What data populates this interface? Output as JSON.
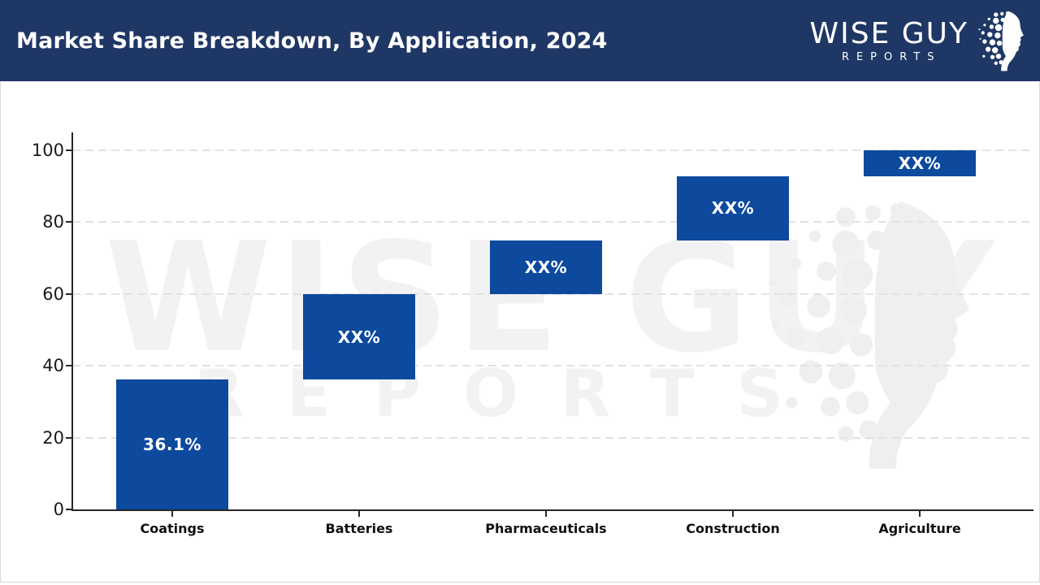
{
  "header": {
    "title": "Market Share Breakdown, By Application, 2024",
    "bg_color": "#1f3765",
    "logo": {
      "line1": "WISE GUY",
      "line2": "REPORTS"
    }
  },
  "watermark": {
    "line1": "WISE GUY",
    "line2": "REPORTS"
  },
  "chart_data": {
    "type": "bar",
    "variant": "waterfall",
    "title": "Market Share Breakdown, By Application, 2024",
    "categories": [
      "Coatings",
      "Batteries",
      "Pharmaceuticals",
      "Construction",
      "Agriculture"
    ],
    "segments": [
      {
        "category": "Coatings",
        "start": 0,
        "end": 36.1,
        "label": "36.1%"
      },
      {
        "category": "Batteries",
        "start": 36.1,
        "end": 60.0,
        "label": "XX%"
      },
      {
        "category": "Pharmaceuticals",
        "start": 60.0,
        "end": 74.9,
        "label": "XX%"
      },
      {
        "category": "Construction",
        "start": 74.9,
        "end": 92.8,
        "label": "XX%"
      },
      {
        "category": "Agriculture",
        "start": 92.8,
        "end": 100.0,
        "label": "XX%"
      }
    ],
    "y_ticks": [
      0,
      20,
      40,
      60,
      80,
      100
    ],
    "ylim": [
      0,
      105
    ],
    "xlabel": "",
    "ylabel": "",
    "grid": "horizontal-dashed",
    "legend": "none",
    "bar_color": "#0d4a9e",
    "bar_label_color": "#ffffff"
  }
}
